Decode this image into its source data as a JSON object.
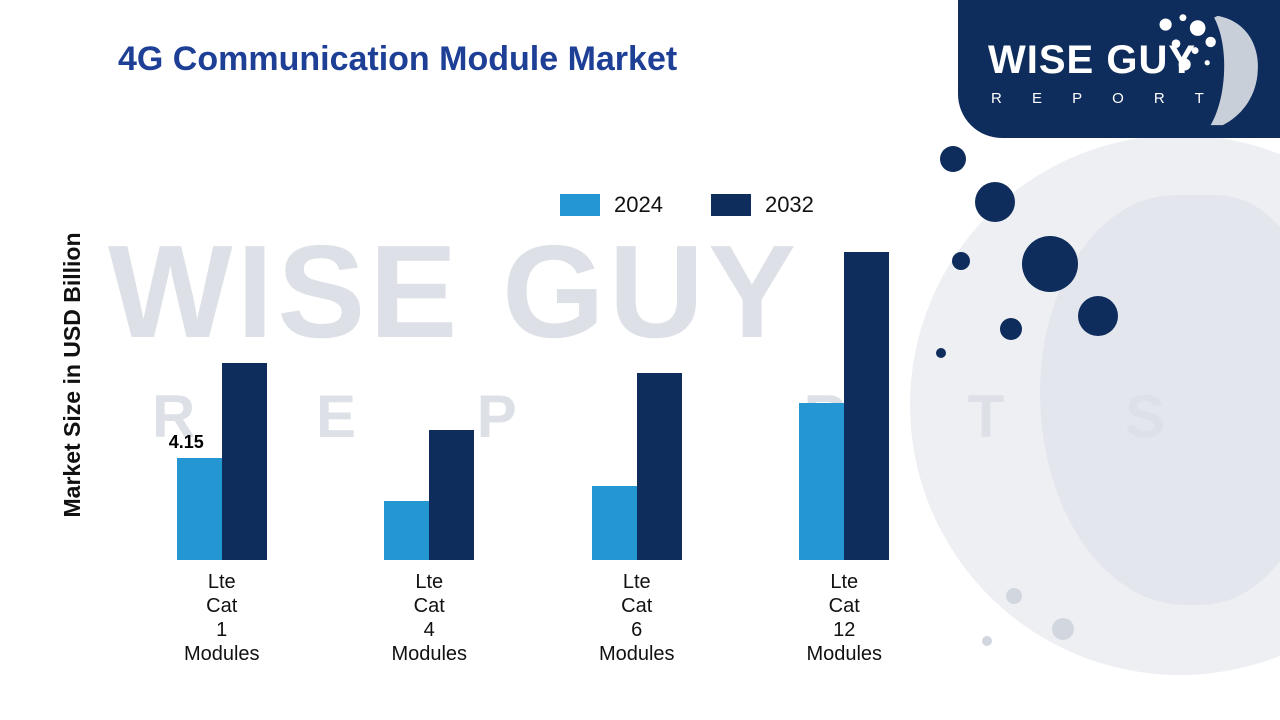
{
  "page": {
    "title": "4G Communication Module Market"
  },
  "logo": {
    "line1": "WISE GUY",
    "line2": "R E P O R T S"
  },
  "watermark": {
    "line1": "WISE GUY",
    "line2": "R E P O R T S"
  },
  "chart_data": {
    "type": "bar",
    "title": "4G Communication Module Market",
    "ylabel": "Market Size in USD Billion",
    "xlabel": "",
    "categories": [
      "Lte Cat 1 Modules",
      "Lte Cat 4 Modules",
      "Lte Cat 6 Modules",
      "Lte Cat 12 Modules"
    ],
    "series": [
      {
        "name": "2024",
        "color": "#2496d2",
        "values": [
          4.15,
          2.4,
          3.0,
          6.4
        ]
      },
      {
        "name": "2032",
        "color": "#0e2d5c",
        "values": [
          8.0,
          5.3,
          7.6,
          12.5
        ]
      }
    ],
    "annotation": {
      "series_index": 0,
      "category_index": 0,
      "text": "4.15"
    },
    "ylim": [
      0,
      13
    ],
    "legend_position": "top-center",
    "grid": false
  },
  "colors": {
    "title": "#1e3f96",
    "series_2024": "#2496d2",
    "series_2032": "#0e2d5c",
    "logo_background": "#0e2d5c",
    "watermark": "#dde1e7"
  }
}
